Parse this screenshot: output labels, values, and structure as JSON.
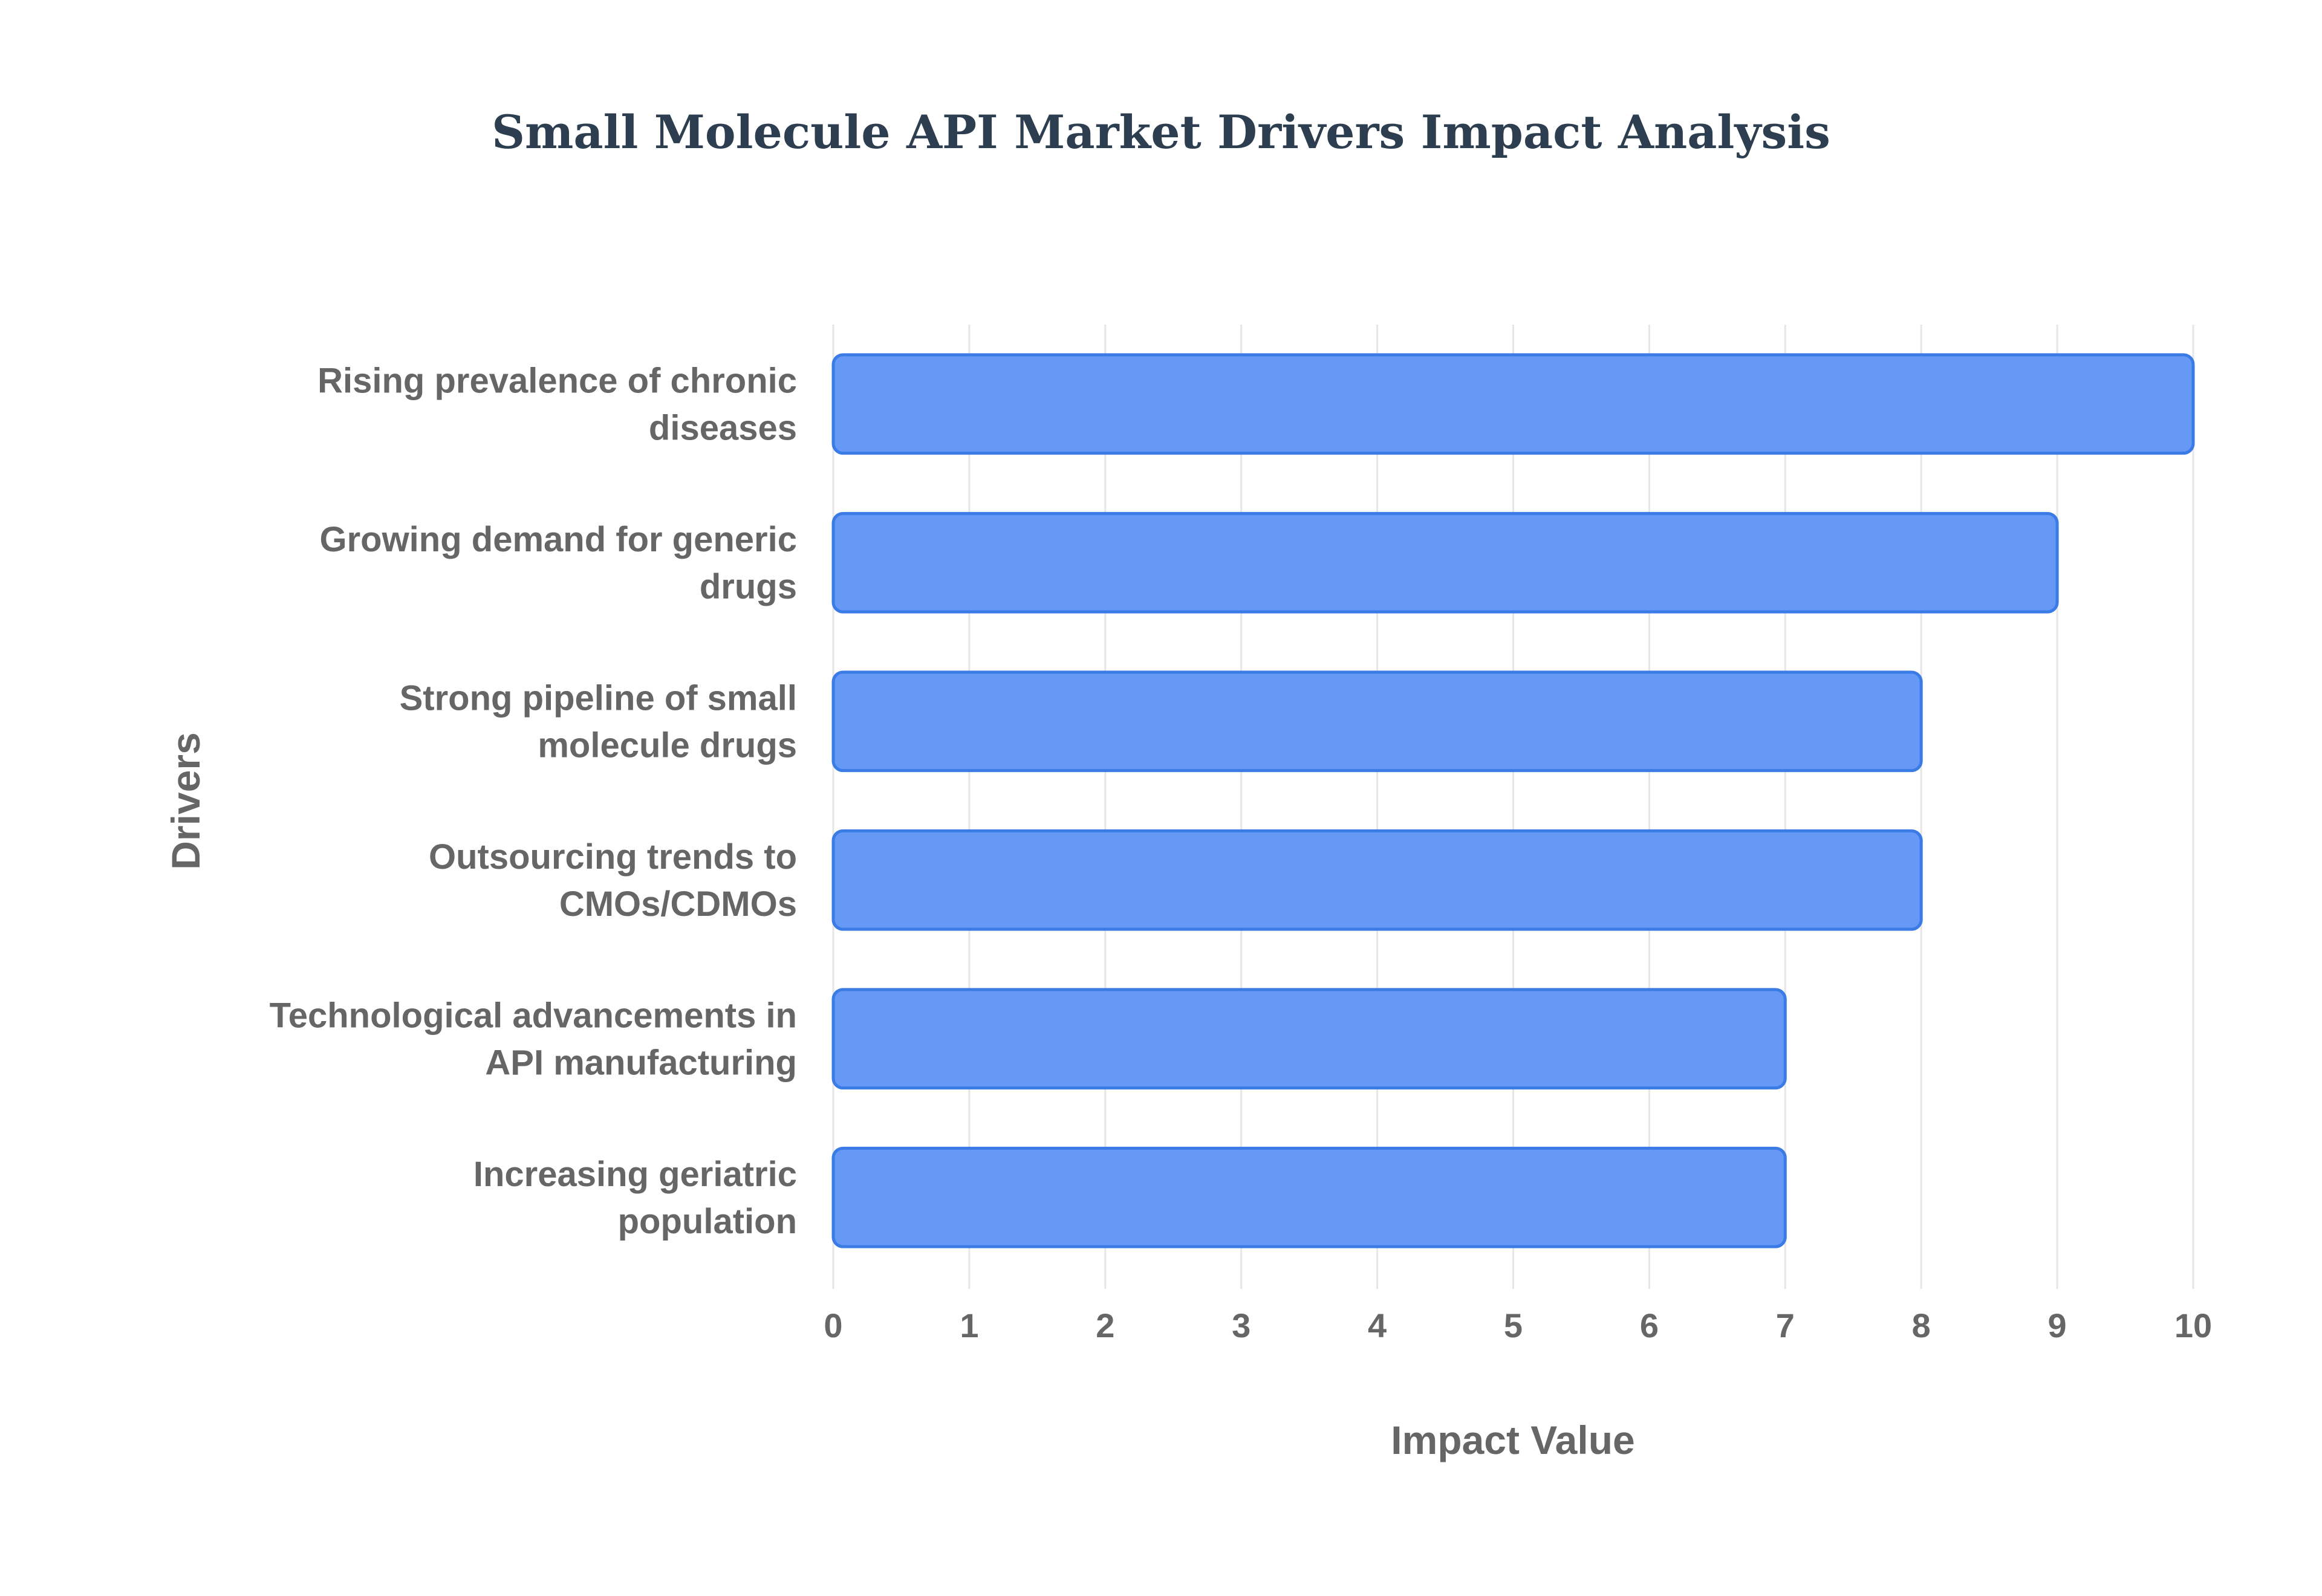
{
  "chart_data": {
    "type": "bar",
    "orientation": "horizontal",
    "title": "Small Molecule API Market Drivers Impact Analysis",
    "xlabel": "Impact Value",
    "ylabel": "Drivers",
    "xlim": [
      0,
      10
    ],
    "xticks": [
      "0",
      "1",
      "2",
      "3",
      "4",
      "5",
      "6",
      "7",
      "8",
      "9",
      "10"
    ],
    "grid": true,
    "categories": [
      [
        "Rising prevalence of chronic",
        "diseases"
      ],
      [
        "Growing demand for generic",
        "drugs"
      ],
      [
        "Strong pipeline of small",
        "molecule drugs"
      ],
      [
        "Outsourcing trends to",
        "CMOs/CDMOs"
      ],
      [
        "Technological advancements in",
        "API manufacturing"
      ],
      [
        "Increasing geriatric",
        "population"
      ]
    ],
    "values": [
      10,
      9,
      8,
      8,
      7,
      7
    ],
    "colors": {
      "bar_fill": "#6699f5",
      "bar_stroke": "#3b7be6",
      "grid": "#e6e6e6",
      "text": "#666666",
      "title": "#2c3e50"
    }
  }
}
